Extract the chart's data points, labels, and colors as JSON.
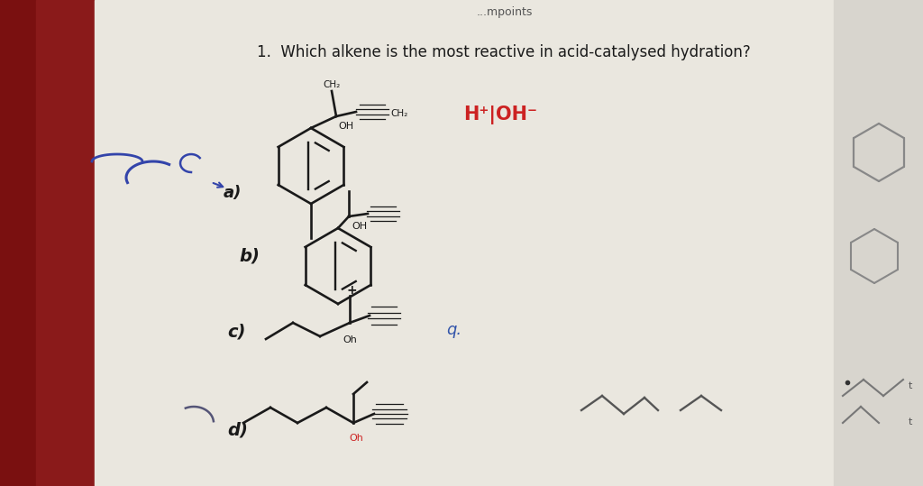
{
  "paper_color": "#ebe8e0",
  "red_left_color": "#8a1a1a",
  "question_text": "1.  Which alkene is the most reactive in acid-catalysed hydration?",
  "ht_oh_label": "H⁺|OH⁻",
  "label_a": "a)",
  "label_b": "b)",
  "label_c": "c)",
  "label_d": "d)",
  "ink_color": "#1a1a1a",
  "blue_color": "#3344aa",
  "red_color": "#cc2222",
  "grey_color": "#888888"
}
